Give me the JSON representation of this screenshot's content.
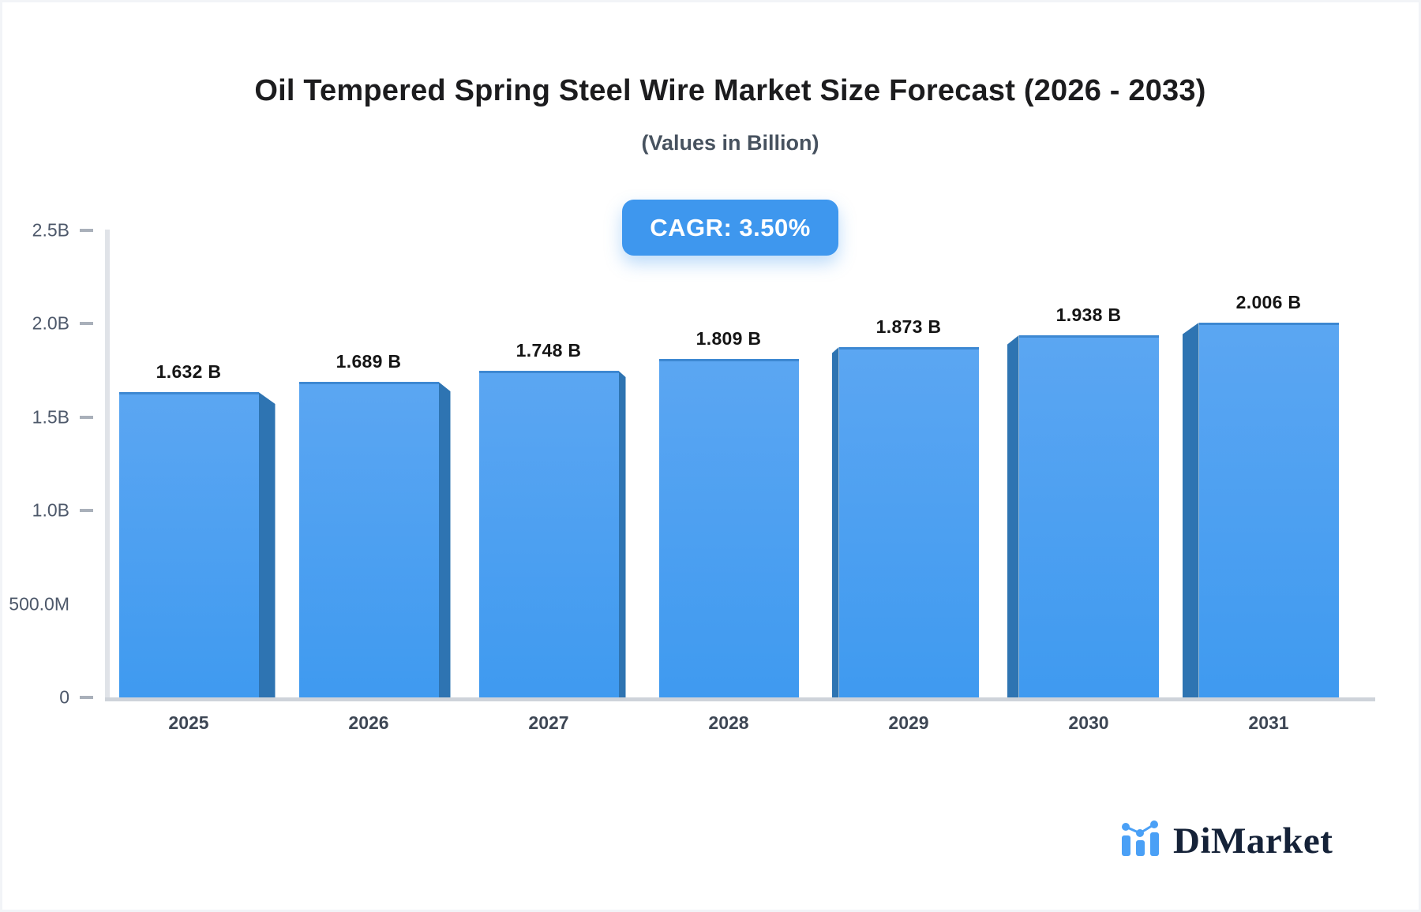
{
  "title": "Oil Tempered Spring Steel Wire Market Size Forecast (2026 - 2033)",
  "subtitle": "(Values in Billion)",
  "badge": {
    "label": "CAGR: 3.50%"
  },
  "chart_data": {
    "type": "bar",
    "categories": [
      "2025",
      "2026",
      "2027",
      "2028",
      "2029",
      "2030",
      "2031"
    ],
    "values": [
      1.632,
      1.689,
      1.748,
      1.809,
      1.873,
      1.938,
      2.006
    ],
    "value_labels": [
      "1.632 B",
      "1.689 B",
      "1.748 B",
      "1.809 B",
      "1.873 B",
      "1.938 B",
      "2.006 B"
    ],
    "title": "Oil Tempered Spring Steel Wire Market Size Forecast (2026 - 2033)",
    "subtitle": "(Values in Billion)",
    "xlabel": "",
    "ylabel": "",
    "ylim": [
      0,
      2.5
    ],
    "yticks": [
      {
        "value": 0.0,
        "label": "0",
        "dash": true
      },
      {
        "value": 0.5,
        "label": "500.0M",
        "dash": false
      },
      {
        "value": 1.0,
        "label": "1.0B",
        "dash": true
      },
      {
        "value": 1.5,
        "label": "1.5B",
        "dash": true
      },
      {
        "value": 2.0,
        "label": "2.0B",
        "dash": true
      },
      {
        "value": 2.5,
        "label": "2.5B",
        "dash": true
      }
    ],
    "grid": false,
    "legend": false,
    "style": "3d-extruded-bars-perspective-to-center"
  },
  "colors": {
    "bar_top": "#5ba6f2",
    "bar_bottom": "#3f9af0",
    "bar_top_edge": "#3d88d2",
    "bar_side": "#2e74b2",
    "badge_bg": "#3e97ee",
    "badge_text": "#ffffff",
    "axis_line": "#ced3da",
    "logo_blue": "#4aa0f6",
    "logo_navy": "#152238"
  },
  "logo": {
    "brand": "DiMarket",
    "icon": "mini-bar-line-chart-icon"
  }
}
